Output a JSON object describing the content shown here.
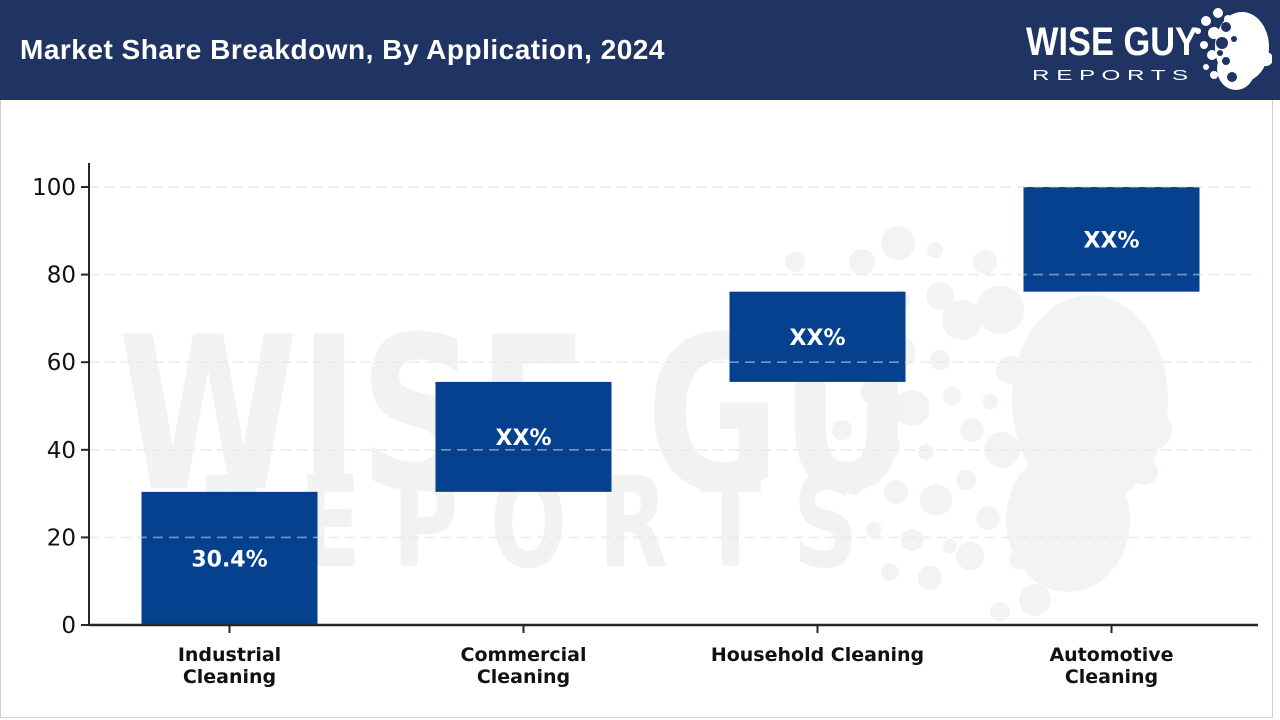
{
  "header": {
    "title": "Market Share Breakdown, By Application, 2024",
    "bg_color": "#1f3462",
    "brand": {
      "line1": "WISE GUY",
      "line2": "R E P O R T S"
    }
  },
  "watermark": {
    "line1": "WISE GU",
    "line2": "R E P O R T S"
  },
  "chart_data": {
    "type": "bar",
    "variant": "waterfall",
    "title": "Market Share Breakdown, By Application, 2024",
    "categories": [
      "Industrial Cleaning",
      "Commercial Cleaning",
      "Household Cleaning",
      "Automotive Cleaning"
    ],
    "category_lines": [
      [
        "Industrial",
        "Cleaning"
      ],
      [
        "Commercial",
        "Cleaning"
      ],
      [
        "Household Cleaning"
      ],
      [
        "Automotive",
        "Cleaning"
      ]
    ],
    "bars": [
      {
        "label": "Industrial Cleaning",
        "start": 0,
        "end": 30.4,
        "value_label": "30.4%"
      },
      {
        "label": "Commercial Cleaning",
        "start": 30.4,
        "end": 55.5,
        "value_label": "XX%"
      },
      {
        "label": "Household Cleaning",
        "start": 55.5,
        "end": 76.1,
        "value_label": "XX%"
      },
      {
        "label": "Automotive Cleaning",
        "start": 76.1,
        "end": 100,
        "value_label": "XX%"
      }
    ],
    "yticks": [
      0,
      20,
      40,
      60,
      80,
      100
    ],
    "ylim": [
      0,
      105.5
    ],
    "grid": true,
    "grid_style": "dashed",
    "legend": false,
    "bar_color": "#05418e",
    "bar_label_color": "#ffffff",
    "axis_color": "#262626",
    "tick_label_color": "#111111",
    "gridline_color": "#dcdcdc",
    "watermark_color": "#f2f3f5"
  }
}
